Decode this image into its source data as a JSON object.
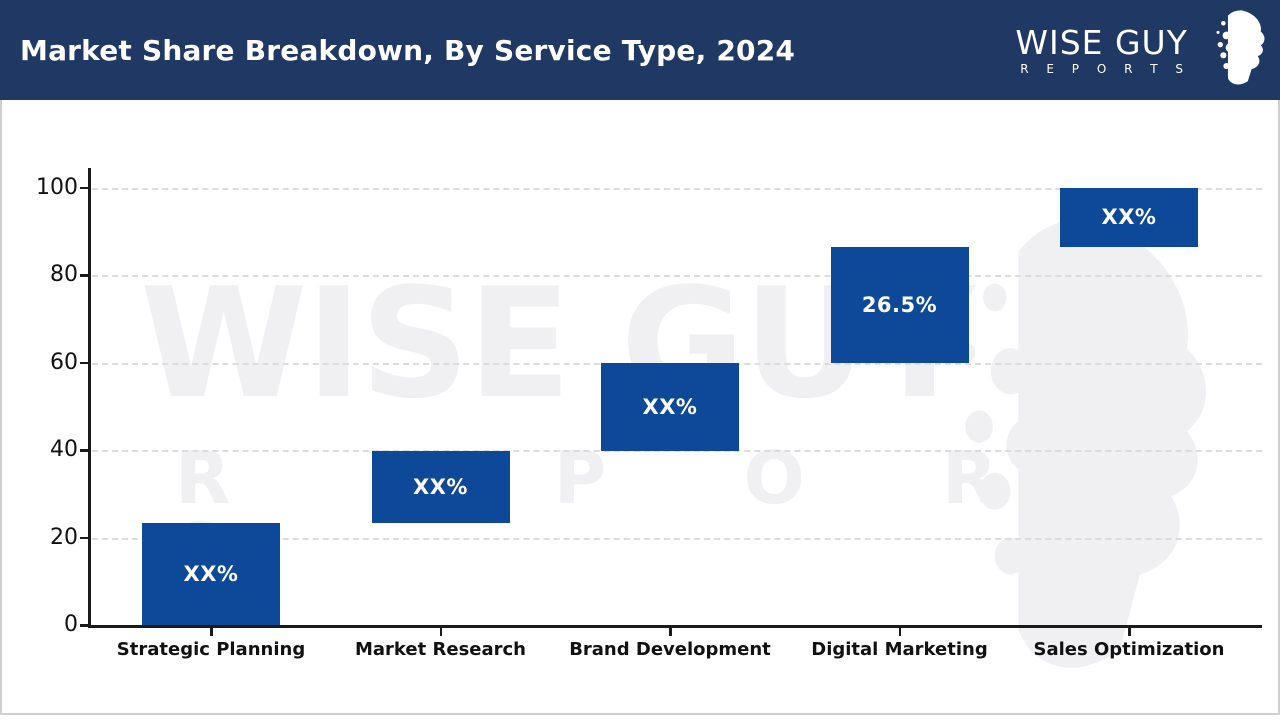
{
  "header": {
    "title": "Market Share Breakdown, By Service Type, 2024",
    "logo": {
      "line1": "WISE GUY",
      "line2": "R E P O R T S"
    }
  },
  "watermark": {
    "line1": "WISE GUY",
    "line2": "R E P O R T S"
  },
  "colors": {
    "header_bg": "#1F3864",
    "bar": "#0D4899",
    "bar_label": "#FFFFFF",
    "grid": "#DCDCDC",
    "axis": "#1A1A1A",
    "tick_label": "#111111",
    "watermark": "#F0F0F3",
    "card_border": "#CFCFD2"
  },
  "chart_data": {
    "type": "bar",
    "subtype": "waterfall",
    "title": "Market Share Breakdown, By Service Type, 2024",
    "categories": [
      "Strategic Planning",
      "Market Research",
      "Brand Development",
      "Digital Marketing",
      "Sales Optimization"
    ],
    "segments": [
      {
        "category": "Strategic Planning",
        "start": 0,
        "end": 23.3,
        "value_label": "XX%"
      },
      {
        "category": "Market Research",
        "start": 23.3,
        "end": 39.8,
        "value_label": "XX%"
      },
      {
        "category": "Brand Development",
        "start": 39.8,
        "end": 60.0,
        "value_label": "XX%"
      },
      {
        "category": "Digital Marketing",
        "start": 60.0,
        "end": 86.5,
        "value_label": "26.5%"
      },
      {
        "category": "Sales Optimization",
        "start": 86.5,
        "end": 100.0,
        "value_label": "XX%"
      }
    ],
    "y_ticks": [
      0,
      20,
      40,
      60,
      80,
      100
    ],
    "ylim": [
      0,
      105
    ],
    "xlabel": "",
    "ylabel": "",
    "grid": "horizontal-dashed",
    "legend": "none",
    "bar_color": "#0D4899"
  }
}
